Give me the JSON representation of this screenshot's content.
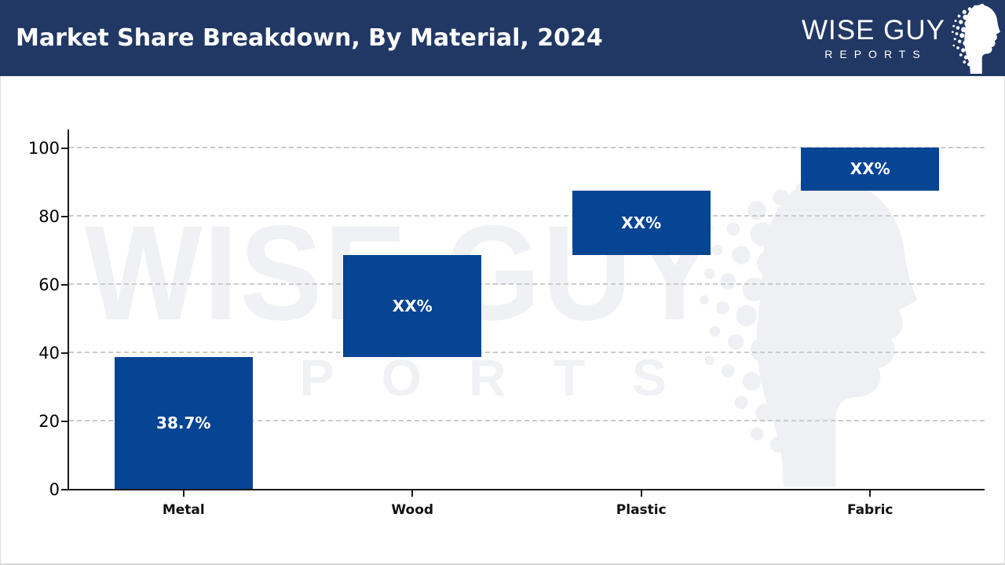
{
  "header": {
    "title": "Market Share Breakdown, By Material, 2024",
    "bg_color": "#213865",
    "logo": {
      "line1": "WISE GUY",
      "line2": "REPORTS"
    }
  },
  "watermark": {
    "line1": "WISE GUY",
    "line2": "REPORTS"
  },
  "chart_data": {
    "type": "bar",
    "variant": "waterfall",
    "title": "Market Share Breakdown, By Material, 2024",
    "categories": [
      "Metal",
      "Wood",
      "Plastic",
      "Fabric"
    ],
    "series": [
      {
        "name": "Market share (%)",
        "segments": [
          {
            "category": "Metal",
            "start": 0,
            "end": 38.7,
            "label": "38.7%"
          },
          {
            "category": "Wood",
            "start": 38.7,
            "end": 68.5,
            "label": "XX%"
          },
          {
            "category": "Plastic",
            "start": 68.5,
            "end": 87.4,
            "label": "XX%"
          },
          {
            "category": "Fabric",
            "start": 87.4,
            "end": 100,
            "label": "XX%"
          }
        ]
      }
    ],
    "xlabel": "",
    "ylabel": "",
    "ylim": [
      0,
      105
    ],
    "yticks": [
      0,
      20,
      40,
      60,
      80,
      100
    ],
    "grid": "horizontal-dashed",
    "legend": "none",
    "bar_color": "#064494",
    "bar_label_color": "#ffffff",
    "axis_color": "#1a1a1a"
  }
}
